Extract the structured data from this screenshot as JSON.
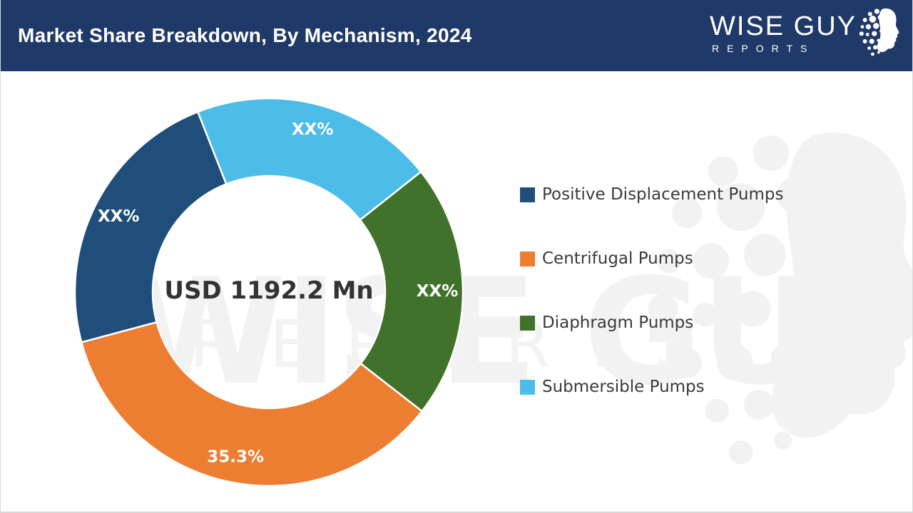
{
  "header": {
    "title": "Market Share Breakdown, By Mechanism, 2024",
    "logo": {
      "line1": "WISE GUY",
      "line2": "REPORTS"
    }
  },
  "watermark": {
    "line1": "WISE GUY",
    "line2": "REPORTS"
  },
  "chart_data": {
    "type": "pie",
    "subtype": "donut",
    "title": "Market Share Breakdown, By Mechanism, 2024",
    "center_label": "USD 1192.2 Mn",
    "start_angle_deg": 111.5,
    "direction": "counterclockwise",
    "legend_position": "right",
    "inner_radius_px": 163,
    "outer_radius_px": 272,
    "series": [
      {
        "name": "Positive Displacement Pumps",
        "pct": 23.2,
        "slice_label": "XX%",
        "color": "#1f4e7a"
      },
      {
        "name": "Centrifugal Pumps",
        "pct": 35.3,
        "slice_label": "35.3%",
        "color": "#ed7d31"
      },
      {
        "name": "Diaphragm Pumps",
        "pct": 21.2,
        "slice_label": "XX%",
        "color": "#41722b"
      },
      {
        "name": "Submersible Pumps",
        "pct": 20.3,
        "slice_label": "XX%",
        "color": "#4cbce8"
      }
    ]
  },
  "colors": {
    "header_bg": "#1f3a68",
    "canvas_bg": "#ffffff",
    "watermark": "#f2f2f2",
    "legend_text": "#3a3a3a",
    "center_text": "#333333",
    "slice_label_text": "#ffffff"
  }
}
